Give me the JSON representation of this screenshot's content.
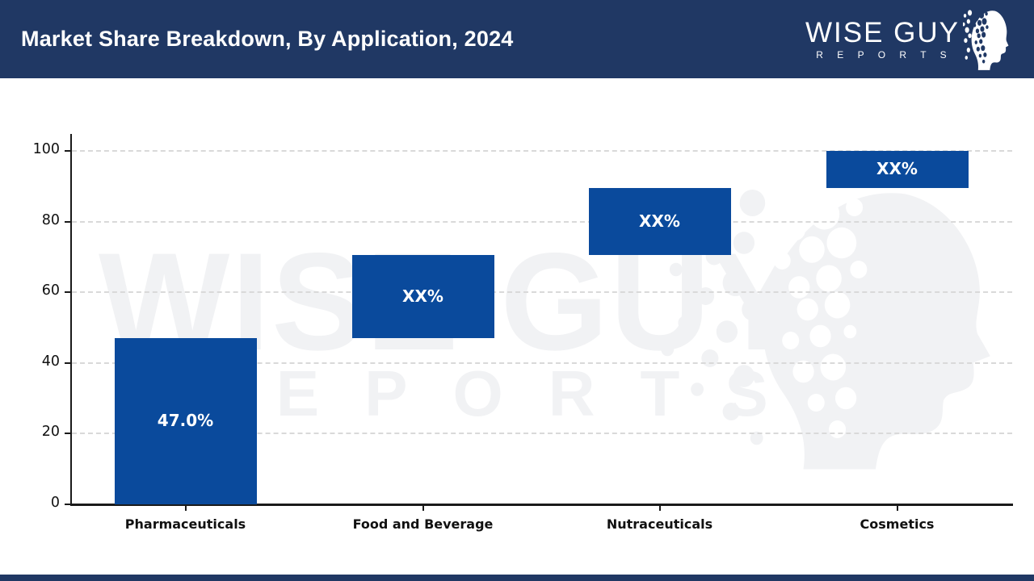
{
  "header": {
    "title": "Market Share Breakdown, By Application, 2024",
    "logo": {
      "line1": "WISE GUY",
      "line2": "R E P O R T S"
    }
  },
  "watermark": {
    "line1": "WISE GUY",
    "line2": "REPORTS"
  },
  "chart_data": {
    "type": "bar",
    "subtype": "waterfall",
    "title": "Market Share Breakdown, By Application, 2024",
    "categories": [
      "Pharmaceuticals",
      "Food and Beverage",
      "Nutraceuticals",
      "Cosmetics"
    ],
    "series": [
      {
        "name": "Market Share (%)",
        "segments": [
          {
            "category": "Pharmaceuticals",
            "start": 0,
            "end": 47.0,
            "label": "47.0%"
          },
          {
            "category": "Food and Beverage",
            "start": 47.0,
            "end": 70.5,
            "label": "XX%"
          },
          {
            "category": "Nutraceuticals",
            "start": 70.5,
            "end": 89.5,
            "label": "XX%"
          },
          {
            "category": "Cosmetics",
            "start": 89.5,
            "end": 100.0,
            "label": "XX%"
          }
        ]
      }
    ],
    "xlabel": "",
    "ylabel": "",
    "ylim": [
      0,
      100
    ],
    "yticks": [
      0,
      20,
      40,
      60,
      80,
      100
    ],
    "grid": "horizontal-dashed",
    "legend": "none",
    "colors": {
      "bar": "#0a4a9c",
      "header_bg": "#203864",
      "grid": "#d9d9d9",
      "axis": "#1a1a1a",
      "watermark": "#f1f2f4",
      "bar_label_text": "#ffffff"
    }
  }
}
